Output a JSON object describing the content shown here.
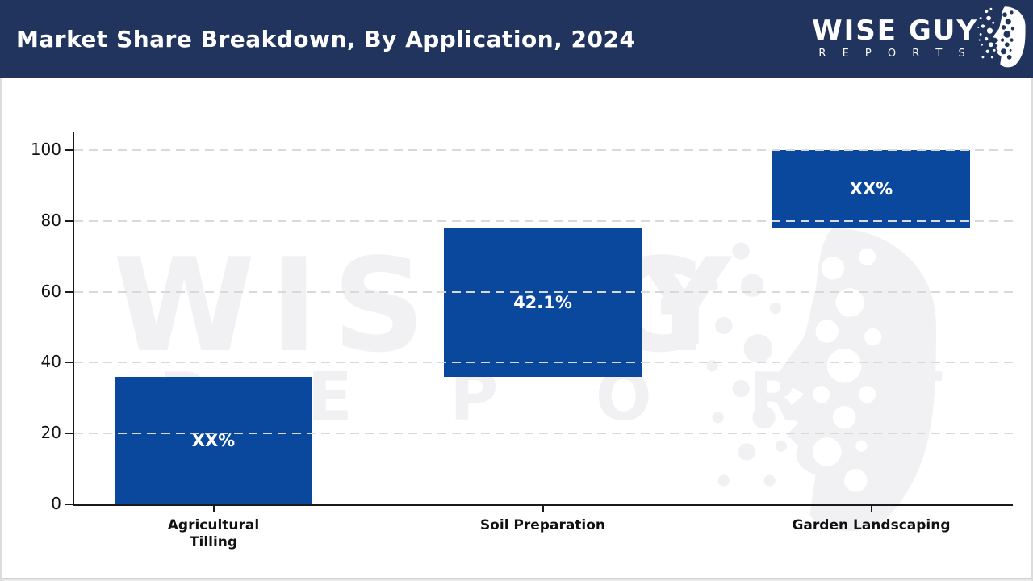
{
  "header": {
    "title": "Market Share Breakdown, By Application, 2024",
    "logo": {
      "name": "WISE GUY",
      "sub": "R E P O R T S"
    }
  },
  "colors": {
    "header_bg": "#21345e",
    "bar": "#0a489e",
    "grid": "#d9d9d9",
    "axis": "#1a1a1a",
    "value_label": "#ffffff",
    "watermark": "#f1f1f3",
    "border": "#dcdcdc"
  },
  "watermark": {
    "line1": "WISE G",
    "line1y": "Y",
    "line2": "R E P O R T S"
  },
  "chart_data": {
    "type": "bar",
    "subtype": "floating-waterfall",
    "title": "Market Share Breakdown, By Application, 2024",
    "categories": [
      "Agricultural Tilling",
      "Soil Preparation",
      "Garden Landscaping"
    ],
    "category_lines": [
      [
        "Agricultural",
        "Tilling"
      ],
      [
        "Soil Preparation"
      ],
      [
        "Garden Landscaping"
      ]
    ],
    "segments": [
      {
        "category": "Agricultural Tilling",
        "start": 0,
        "end": 36,
        "label": "XX%"
      },
      {
        "category": "Soil Preparation",
        "start": 36,
        "end": 78.1,
        "label": "42.1%"
      },
      {
        "category": "Garden Landscaping",
        "start": 78.1,
        "end": 100,
        "label": "XX%"
      }
    ],
    "ylim": [
      0,
      100
    ],
    "yticks": [
      0,
      20,
      40,
      60,
      80,
      100
    ],
    "grid": {
      "horizontal": true,
      "style": "dashed"
    },
    "legend": null,
    "xlabel": "",
    "ylabel": ""
  }
}
